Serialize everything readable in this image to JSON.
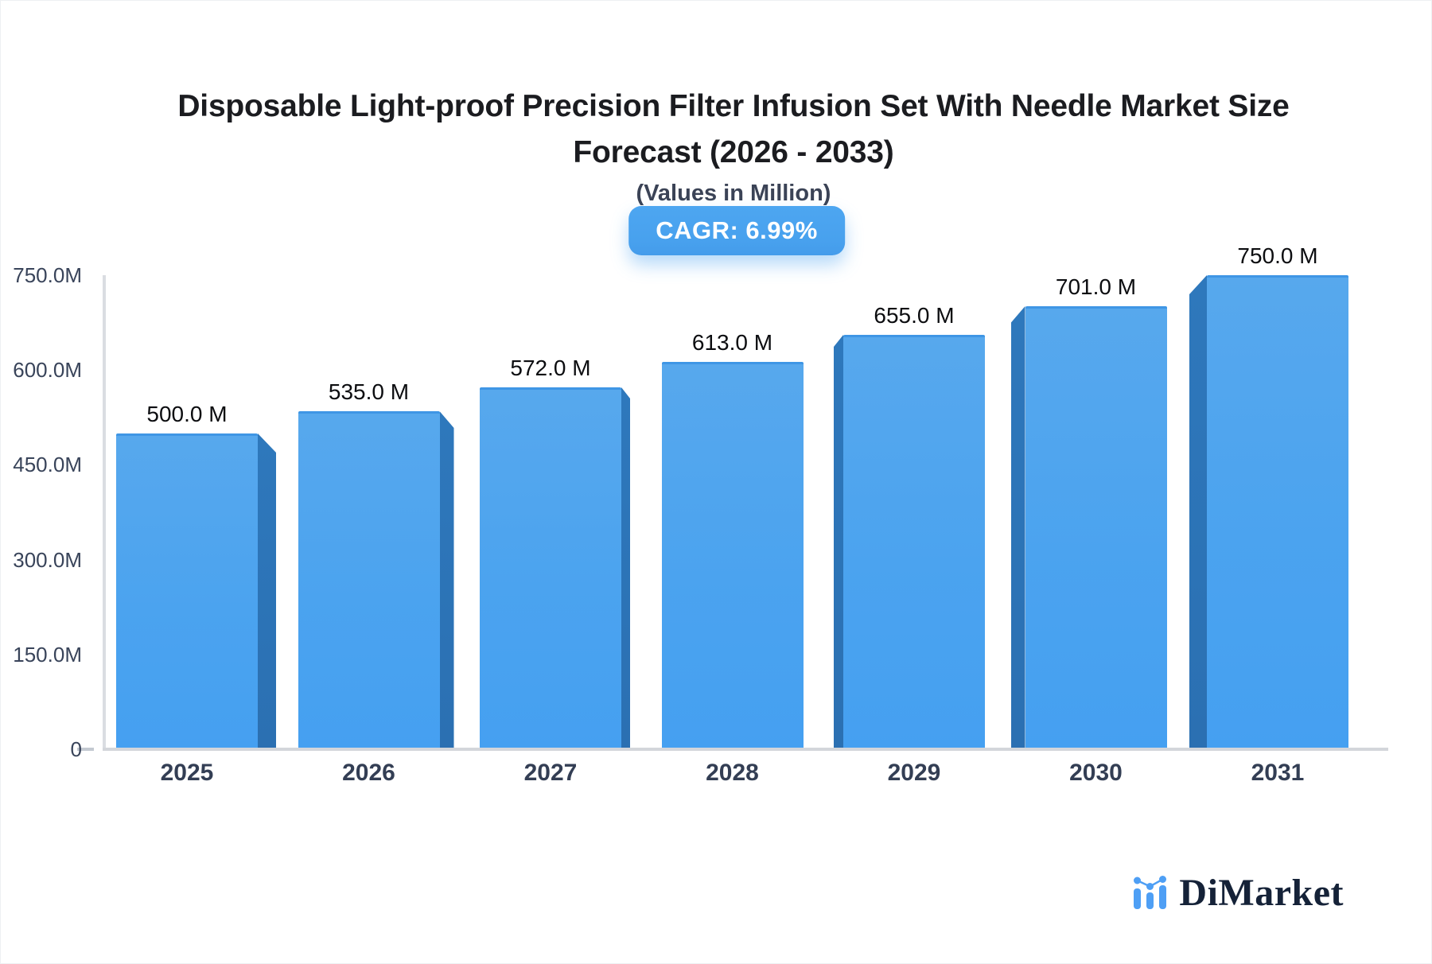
{
  "header": {
    "title": "Disposable Light-proof Precision Filter Infusion Set With Needle Market Size Forecast (2026 - 2033)",
    "subtitle": "(Values in Million)",
    "cagr_badge": "CAGR: 6.99%"
  },
  "chart_data": {
    "type": "bar",
    "title": "Disposable Light-proof Precision Filter Infusion Set With Needle Market Size Forecast (2026 - 2033)",
    "subtitle": "(Values in Million)",
    "categories": [
      "2025",
      "2026",
      "2027",
      "2028",
      "2029",
      "2030",
      "2031"
    ],
    "values": [
      500,
      535,
      572,
      613,
      655,
      701,
      750
    ],
    "value_labels": [
      "500.0 M",
      "535.0 M",
      "572.0 M",
      "613.0 M",
      "655.0 M",
      "701.0 M",
      "750.0 M"
    ],
    "y_ticks": [
      {
        "label": "750.0M",
        "value": 750
      },
      {
        "label": "600.0M",
        "value": 600
      },
      {
        "label": "450.0M",
        "value": 450
      },
      {
        "label": "300.0M",
        "value": 300
      },
      {
        "label": "150.0M",
        "value": 150
      },
      {
        "label": "0",
        "value": 0
      }
    ],
    "ylim": [
      0,
      750
    ],
    "xlabel": "",
    "ylabel": "",
    "grid": false,
    "legend": "none",
    "bar_style": "3d-beveled"
  },
  "colors": {
    "bar_face_top": "#57a8ed",
    "bar_face_bottom": "#45a0f1",
    "bar_side": "#2c74b7",
    "badge_background": "#4aa3f0",
    "badge_text": "#ffffff",
    "axis_line": "#dadde2",
    "title_text": "#1b1c20",
    "axis_label_text": "#39445a",
    "logo_blue": "#4e9ff5",
    "logo_text": "#152238"
  },
  "logo": {
    "text": "DiMarket",
    "icon": "bar-chart-with-trend-icon"
  }
}
